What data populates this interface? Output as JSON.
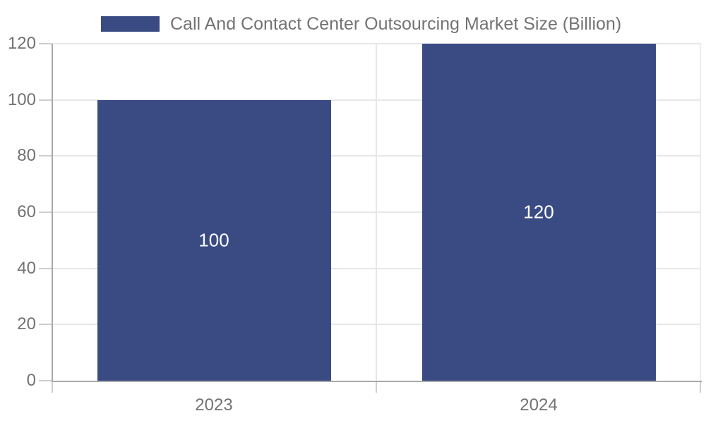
{
  "chart_data": {
    "type": "bar",
    "title": "Call And Contact Center Outsourcing Market Size (Billion)",
    "categories": [
      "2023",
      "2024"
    ],
    "values": [
      100,
      120
    ],
    "bar_value_labels": [
      "100",
      "120"
    ],
    "xlabel": "",
    "ylabel": "",
    "ylim": [
      0,
      120
    ],
    "yticks": [
      0,
      20,
      40,
      60,
      80,
      100,
      120
    ],
    "grid": true,
    "legend_position": "top",
    "colors": {
      "bar": "#3A4B84",
      "label_text": "#737373",
      "bar_value_text": "#FFFFFF",
      "axis_line": "#A9A9A9",
      "grid_line": "#E7E7E7",
      "tick_line": "#CFCFCF",
      "background": "#FFFFFF"
    }
  }
}
